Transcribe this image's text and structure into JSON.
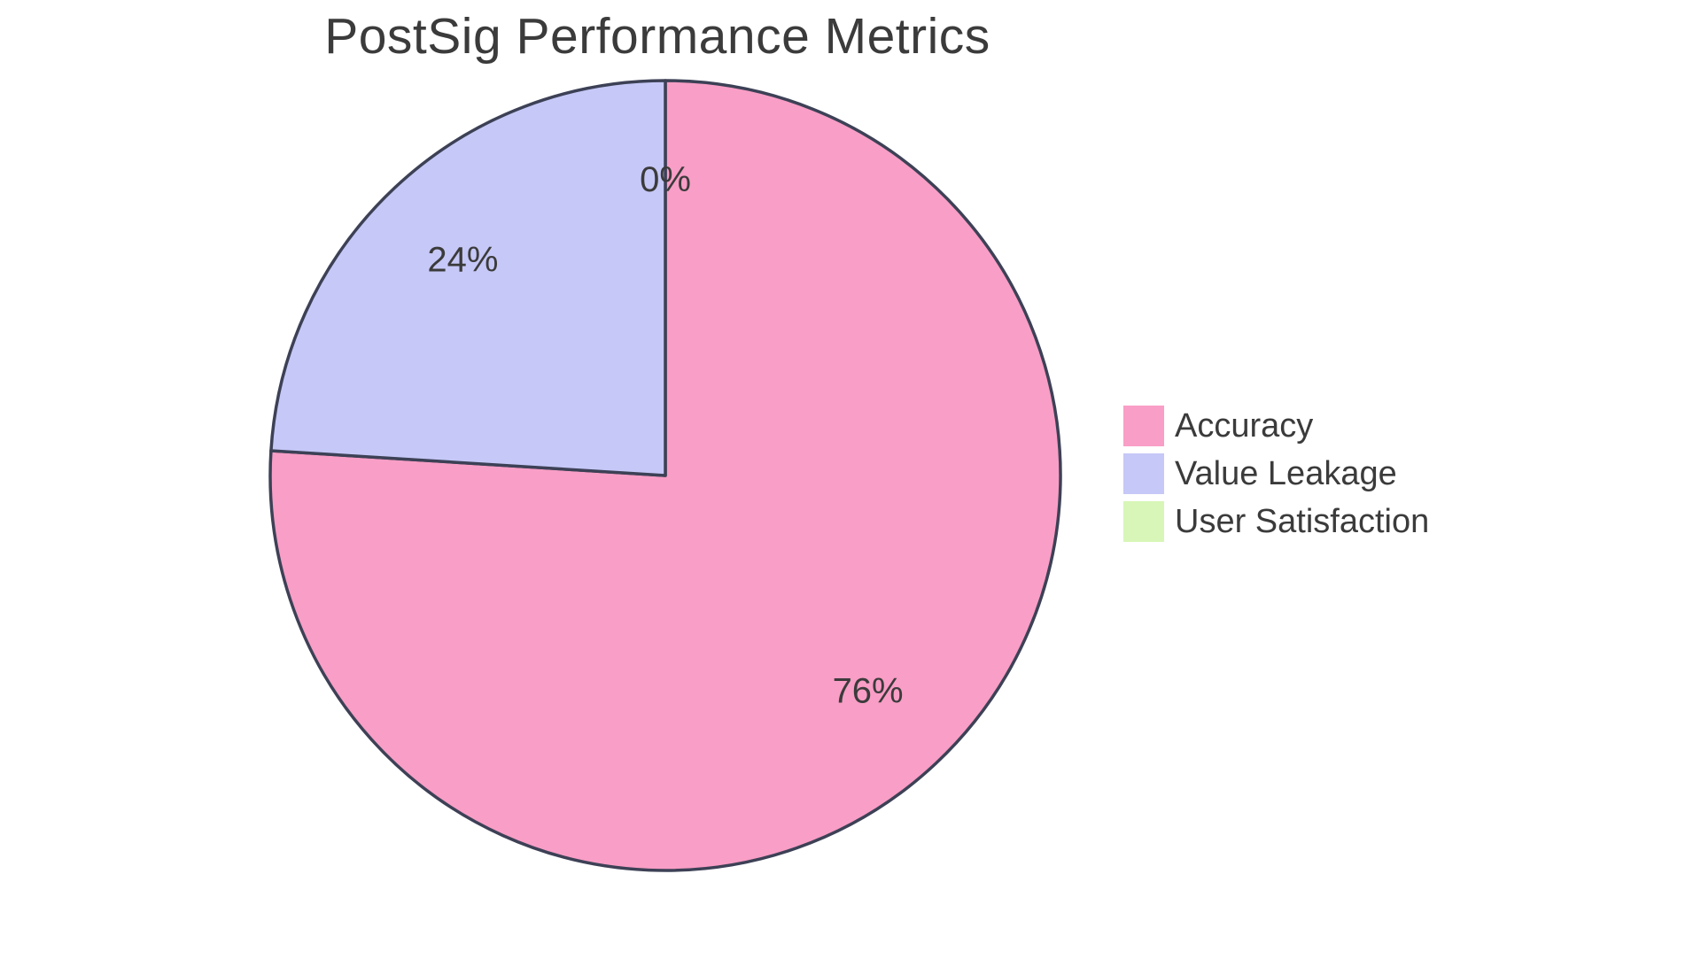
{
  "page": {
    "background": "#FFFFFF"
  },
  "chart_data": {
    "type": "pie",
    "title": "PostSig Performance Metrics",
    "labels": [
      "Accuracy",
      "Value Leakage",
      "User Satisfaction"
    ],
    "values": [
      76,
      24,
      0
    ],
    "percent_labels": [
      "76%",
      "24%",
      "0%"
    ],
    "colors": [
      "#F99EC6",
      "#C6C8F7",
      "#D7F6B7"
    ],
    "slice_border_color": "#3D4156",
    "text_color": "#3B3B3B",
    "legend_position": "right",
    "start_angle": "top",
    "direction": "clockwise"
  }
}
